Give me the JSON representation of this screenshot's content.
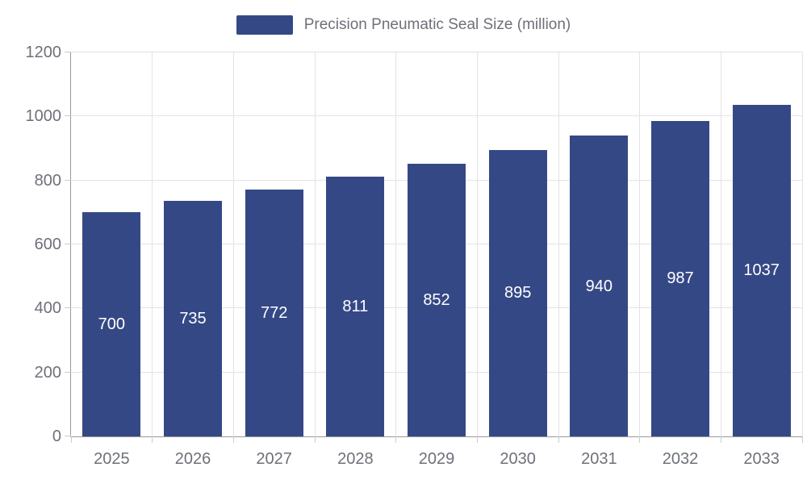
{
  "chart_data": {
    "type": "bar",
    "title": "Precision Pneumatic Seal Size (million)",
    "categories": [
      "2025",
      "2026",
      "2027",
      "2028",
      "2029",
      "2030",
      "2031",
      "2032",
      "2033"
    ],
    "values": [
      700,
      735,
      772,
      811,
      852,
      895,
      940,
      987,
      1037
    ],
    "xlabel": "",
    "ylabel": "",
    "ylim": [
      0,
      1200
    ],
    "ytick_interval": 200,
    "ytick_labels": [
      "0",
      "200",
      "400",
      "600",
      "800",
      "1000",
      "1200"
    ],
    "grid": true,
    "legend_position": "top",
    "value_labels": "inside-center"
  },
  "colors": {
    "bar": "#354886",
    "axis": "#999999",
    "grid": "#e3e3e6",
    "tick": "#cccccc",
    "label": "#6e7079",
    "value_label": "#ffffff",
    "background": "#ffffff"
  }
}
